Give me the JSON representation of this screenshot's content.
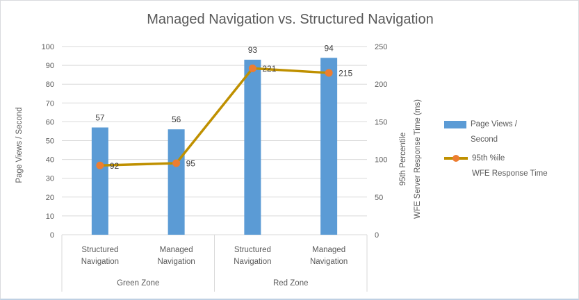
{
  "chart_data": {
    "type": "combo-bar-line",
    "title": "Managed Navigation vs. Structured Navigation",
    "categories": [
      "Structured Navigation",
      "Managed Navigation",
      "Structured Navigation",
      "Managed Navigation"
    ],
    "category_groups": [
      {
        "label": "Green Zone",
        "span": 2
      },
      {
        "label": "Red Zone",
        "span": 2
      }
    ],
    "series": [
      {
        "name": "Page Views / Second",
        "type": "bar",
        "axis": "left",
        "values": [
          57,
          56,
          93,
          94
        ],
        "color": "#5B9BD5"
      },
      {
        "name": "95th %ile WFE Response Time",
        "type": "line",
        "axis": "right",
        "values": [
          92,
          95,
          221,
          215
        ],
        "color": "#BF9000",
        "marker_color": "#ED7D31"
      }
    ],
    "left_axis": {
      "title": "Page Views / Second",
      "min": 0,
      "max": 100,
      "step": 10
    },
    "right_axis": {
      "title": "95th Percentile WFE Server Response Time (ms)",
      "title_lines": [
        "95th Percentile",
        "WFE Server Response Time (ms)"
      ],
      "min": 0,
      "max": 250,
      "step": 50
    },
    "legend": {
      "position": "right",
      "items": [
        {
          "label": "Page Views / Second",
          "lines": [
            "Page Views /",
            "Second"
          ],
          "swatch": "bar"
        },
        {
          "label": "95th %ile WFE Response Time",
          "lines": [
            "95th %ile",
            "WFE Response Time"
          ],
          "swatch": "line"
        }
      ]
    },
    "data_labels": true,
    "gridlines": "horizontal",
    "colors": {
      "text": "#595959",
      "data_label": "#404040",
      "grid": "#D9D9D9",
      "category_border": "#D9D9D9"
    }
  }
}
